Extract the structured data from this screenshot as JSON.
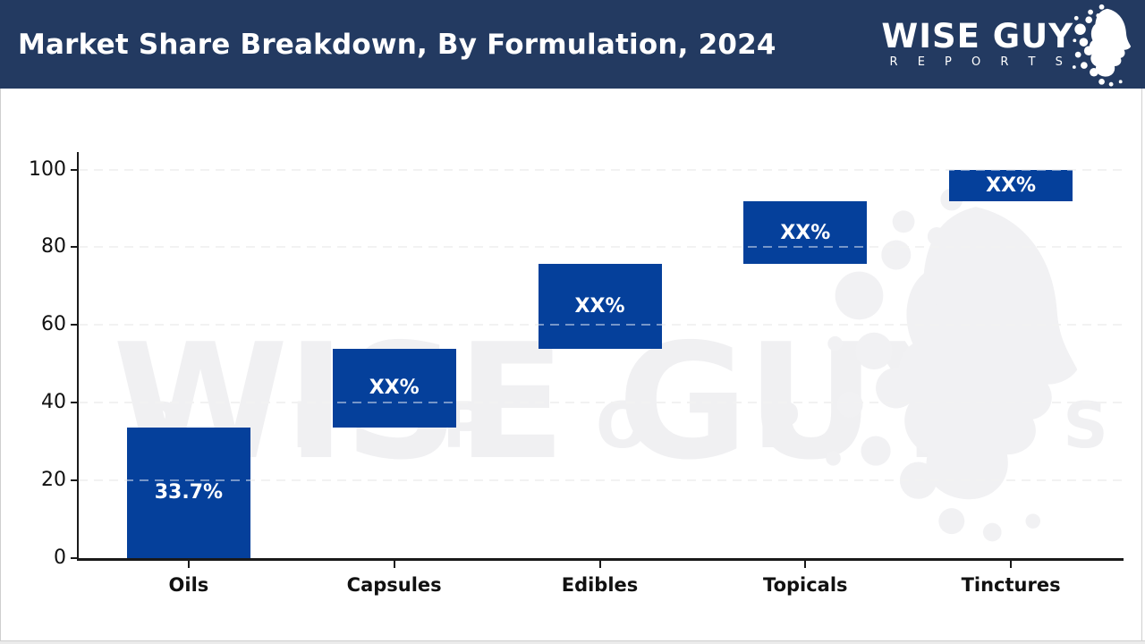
{
  "header": {
    "title": "Market Share Breakdown, By Formulation, 2024",
    "bg_color": "#233a61",
    "logo": {
      "line1": "WISE GUY",
      "line2": "R E P O R T S"
    }
  },
  "watermark": {
    "line1": "WISE GUY",
    "line2": "R E P O R T S",
    "color": "#f0f0f2"
  },
  "chart_data": {
    "type": "bar",
    "subtype": "waterfall",
    "title": "Market Share Breakdown, By Formulation, 2024",
    "categories": [
      "Oils",
      "Capsules",
      "Edibles",
      "Topicals",
      "Tinctures"
    ],
    "segments": [
      {
        "category": "Oils",
        "start": 0,
        "end": 33.7,
        "value": 33.7,
        "label": "33.7%"
      },
      {
        "category": "Capsules",
        "start": 33.7,
        "end": 53.8,
        "value": 20.1,
        "label": "XX%"
      },
      {
        "category": "Edibles",
        "start": 53.8,
        "end": 75.7,
        "value": 21.9,
        "label": "XX%"
      },
      {
        "category": "Topicals",
        "start": 75.7,
        "end": 91.8,
        "value": 16.1,
        "label": "XX%"
      },
      {
        "category": "Tinctures",
        "start": 91.8,
        "end": 100,
        "value": 8.2,
        "label": "XX%"
      }
    ],
    "xlabel": "",
    "ylabel": "",
    "yticks": [
      0,
      20,
      40,
      60,
      80,
      100
    ],
    "ylim": [
      0,
      104.5
    ],
    "grid": "horizontal dashed",
    "legend": "none",
    "bar_color": "#05409b",
    "bar_label_color": "#ffffff",
    "axis_color": "#1a1a1a",
    "gridline_color": "#e7e7e7"
  }
}
